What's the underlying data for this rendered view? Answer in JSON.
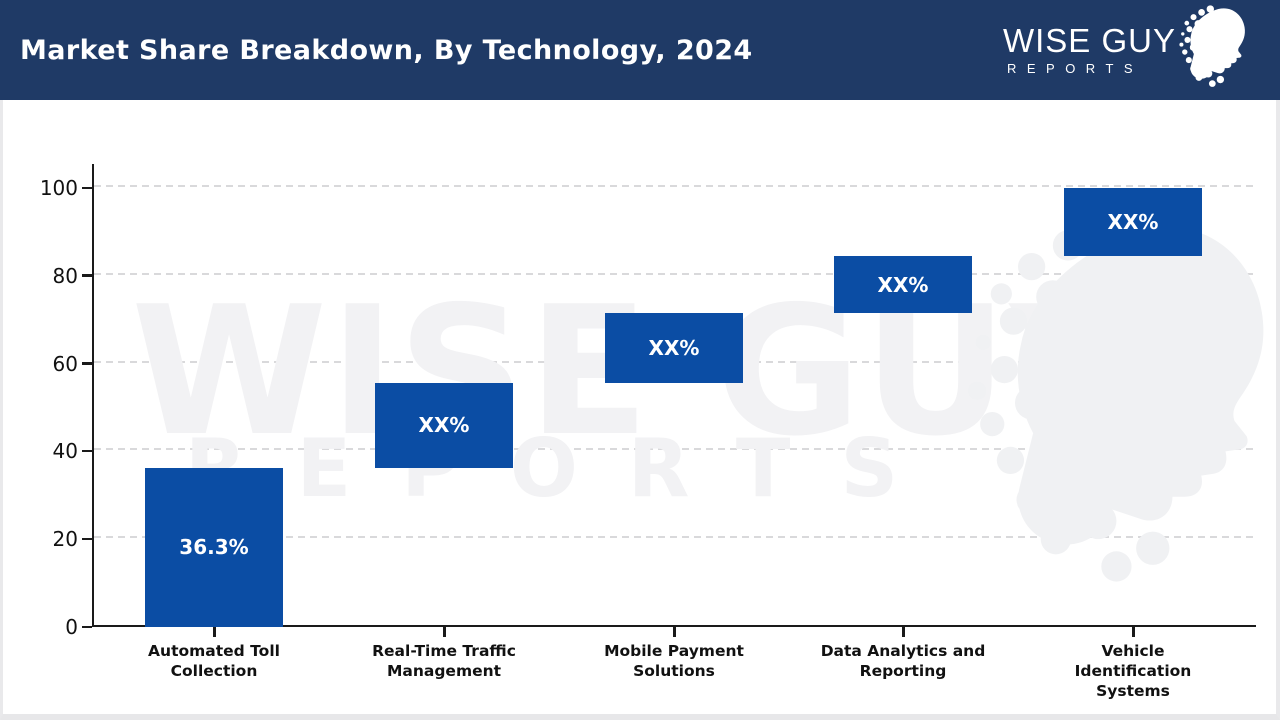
{
  "header": {
    "title": "Market Share Breakdown, By Technology, 2024",
    "bg_color": "#1f3a66",
    "logo": {
      "line1": "WISE GUY",
      "line2": "REPORTS"
    }
  },
  "watermark": {
    "line1": "WISE GUY",
    "line2": "REPORTS"
  },
  "chart_data": {
    "type": "bar",
    "subtype": "waterfall",
    "title": "Market Share Breakdown, By Technology, 2024",
    "xlabel": "",
    "ylabel": "",
    "ylim": [
      0,
      105
    ],
    "yticks": [
      0,
      20,
      40,
      60,
      80,
      100
    ],
    "grid": "horizontal dashed",
    "legend": "none",
    "bar_color": "#0b4da4",
    "bar_label_color": "#ffffff",
    "axis_color": "#1a1a1a",
    "categories": [
      "Automated Toll\nCollection",
      "Real-Time Traffic\nManagement",
      "Mobile Payment\nSolutions",
      "Data Analytics and\nReporting",
      "Vehicle\nIdentification\nSystems"
    ],
    "segments": [
      {
        "category": "Automated Toll Collection",
        "start": 0,
        "end": 36.3,
        "label": "36.3%"
      },
      {
        "category": "Real-Time Traffic Management",
        "start": 36.3,
        "end": 55.6,
        "label": "XX%"
      },
      {
        "category": "Mobile Payment Solutions",
        "start": 55.6,
        "end": 71.5,
        "label": "XX%"
      },
      {
        "category": "Data Analytics and Reporting",
        "start": 71.5,
        "end": 84.5,
        "label": "XX%"
      },
      {
        "category": "Vehicle Identification Systems",
        "start": 84.5,
        "end": 100,
        "label": "XX%"
      }
    ]
  }
}
